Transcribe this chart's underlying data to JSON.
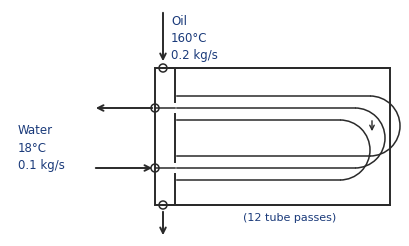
{
  "fig_width": 4.09,
  "fig_height": 2.46,
  "dpi": 100,
  "background": "#ffffff",
  "oil_label": "Oil\n160°C\n0.2 kg/s",
  "water_label": "Water\n18°C\n0.1 kg/s",
  "tube_passes_label": "(12 tube passes)",
  "text_color": "#1a3a7a",
  "line_color": "#2a2a2a",
  "font_size": 8.5
}
